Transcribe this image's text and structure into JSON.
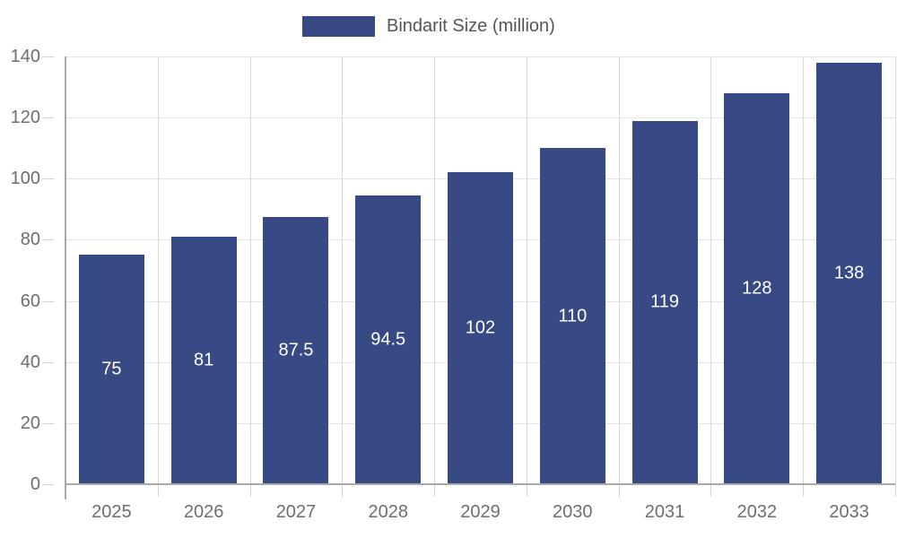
{
  "chart_data": {
    "type": "bar",
    "title": "Bindarit Size (million)",
    "legend": {
      "label": "Bindarit Size (million)",
      "position": "top"
    },
    "categories": [
      "2025",
      "2026",
      "2027",
      "2028",
      "2029",
      "2030",
      "2031",
      "2032",
      "2033"
    ],
    "series": [
      {
        "name": "Bindarit Size (million)",
        "values": [
          75,
          81,
          87.5,
          94.5,
          102,
          110,
          119,
          128,
          138
        ]
      }
    ],
    "value_labels": [
      "75",
      "81",
      "87.5",
      "94.5",
      "102",
      "110",
      "119",
      "128",
      "138"
    ],
    "xlabel": "",
    "ylabel": "",
    "ylim": [
      0,
      140
    ],
    "yticks": [
      0,
      20,
      40,
      60,
      80,
      100,
      120,
      140
    ],
    "grid": true,
    "colors": {
      "bar": "#374a85",
      "value_label": "#ffffff",
      "axis_line": "#a9a9a9",
      "grid_horizontal": "#e6e6e6",
      "grid_vertical": "#d8d8d8",
      "tick_mark": "#d4d4d4",
      "tick_label": "#6e6e6e",
      "legend_text": "#555557",
      "background": "#ffffff"
    }
  }
}
